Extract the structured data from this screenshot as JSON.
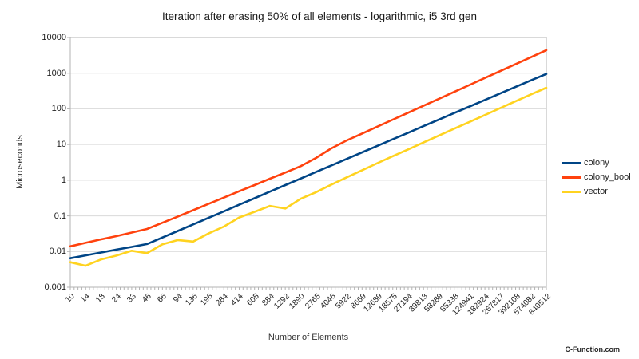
{
  "watermark": "C-Function.com",
  "colors": {
    "grid": "#d9d9d9",
    "axis": "#b3b3b3",
    "text": "#222222",
    "background": "#ffffff"
  },
  "chart_data": {
    "type": "line",
    "title": "Iteration after erasing 50% of all elements - logarithmic, i5 3rd gen",
    "xlabel": "Number of Elements",
    "ylabel": "Microseconds",
    "y_scale": "log",
    "ylim": [
      0.001,
      10000
    ],
    "y_ticks": [
      "10000",
      "1000",
      "100",
      "10",
      "1",
      "0.1",
      "0.01",
      "0.001"
    ],
    "grid": "horizontal-major",
    "legend_position": "right",
    "categories": [
      "10",
      "14",
      "18",
      "24",
      "33",
      "46",
      "66",
      "94",
      "136",
      "196",
      "284",
      "414",
      "605",
      "884",
      "1292",
      "1890",
      "2765",
      "4046",
      "5922",
      "8669",
      "12689",
      "18575",
      "27194",
      "39813",
      "58289",
      "85338",
      "124941",
      "182924",
      "267817",
      "392108",
      "574082",
      "840512"
    ],
    "series": [
      {
        "name": "colony",
        "color": "#004586",
        "values": [
          0.0065,
          0.0078,
          0.0094,
          0.0113,
          0.0135,
          0.0162,
          0.0247,
          0.0377,
          0.0576,
          0.088,
          0.134,
          0.205,
          0.312,
          0.477,
          0.728,
          1.11,
          1.7,
          2.59,
          3.95,
          6.03,
          9.2,
          14.0,
          21.4,
          32.7,
          49.9,
          76.2,
          116,
          177,
          271,
          413,
          631,
          950
        ]
      },
      {
        "name": "colony_bool",
        "color": "#ff420e",
        "values": [
          0.014,
          0.0175,
          0.022,
          0.027,
          0.034,
          0.043,
          0.064,
          0.096,
          0.144,
          0.216,
          0.325,
          0.49,
          0.73,
          1.1,
          1.64,
          2.47,
          4.2,
          7.8,
          13.0,
          20.3,
          31.8,
          49.8,
          78,
          122,
          191,
          299,
          468,
          733,
          1147,
          1795,
          2810,
          4400
        ]
      },
      {
        "name": "vector",
        "color": "#ffd320",
        "values": [
          0.005,
          0.004,
          0.006,
          0.0077,
          0.0105,
          0.009,
          0.016,
          0.021,
          0.019,
          0.032,
          0.05,
          0.09,
          0.13,
          0.19,
          0.16,
          0.3,
          0.46,
          0.75,
          1.2,
          1.9,
          3.0,
          4.7,
          7.3,
          11.4,
          17.8,
          27.8,
          43,
          67,
          105,
          163,
          254,
          390
        ]
      }
    ]
  }
}
